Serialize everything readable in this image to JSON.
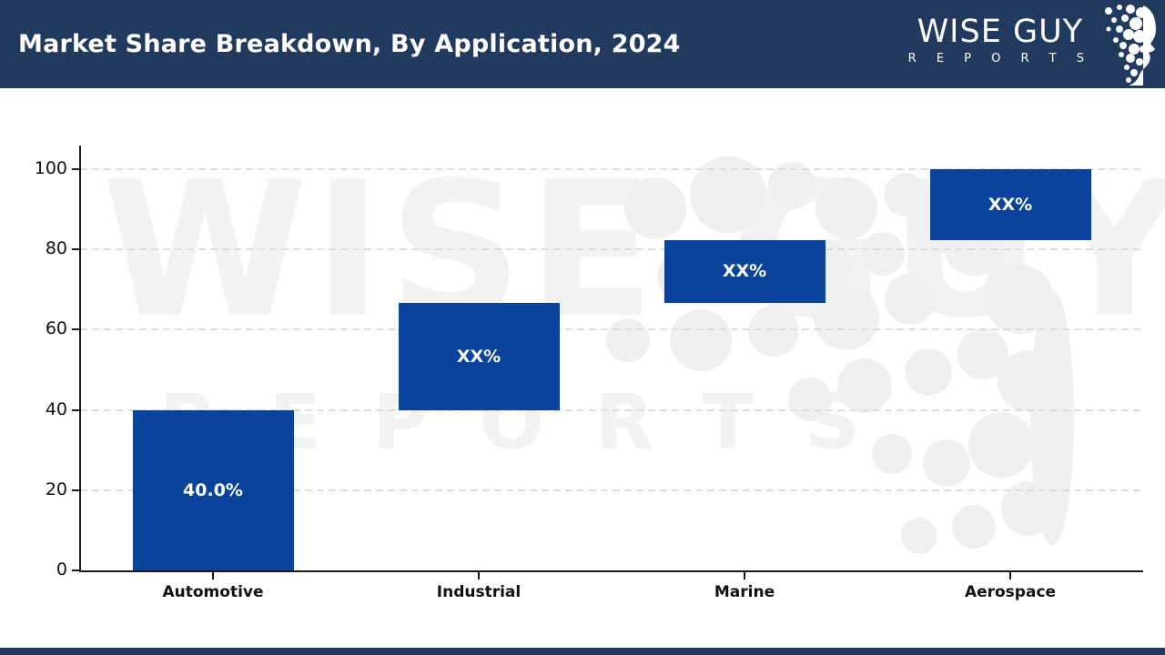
{
  "header": {
    "title": "Market Share Breakdown, By Application, 2024",
    "bg_color": "#213a5e",
    "logo": {
      "line1": "WISE GUY",
      "line2": "R E P O R T S"
    }
  },
  "watermark": {
    "line1": "WISE GUY",
    "line2": "REPORTS"
  },
  "chart_data": {
    "type": "bar",
    "subtype": "waterfall",
    "title": "Market Share Breakdown, By Application, 2024",
    "xlabel": "",
    "ylabel": "",
    "categories": [
      "Automotive",
      "Industrial",
      "Marine",
      "Aerospace"
    ],
    "series": [
      {
        "name": "Market Share (%)",
        "segments": [
          {
            "category": "Automotive",
            "start": 0,
            "end": 40,
            "label": "40.0%"
          },
          {
            "category": "Industrial",
            "start": 40,
            "end": 66.7,
            "label": "XX%"
          },
          {
            "category": "Marine",
            "start": 66.7,
            "end": 82.3,
            "label": "XX%"
          },
          {
            "category": "Aerospace",
            "start": 82.3,
            "end": 100,
            "label": "XX%"
          }
        ]
      }
    ],
    "yticks": [
      0,
      20,
      40,
      60,
      80,
      100
    ],
    "ylim": [
      0,
      106
    ],
    "grid": "horizontal-dashed",
    "legend": "none",
    "bar_color": "#0a439b",
    "bar_label_color": "#ffffff",
    "axis_color": "#1a1a1a",
    "gridline_color": "#dcdcdc"
  },
  "footer": {
    "bg_color": "#213a5e"
  }
}
